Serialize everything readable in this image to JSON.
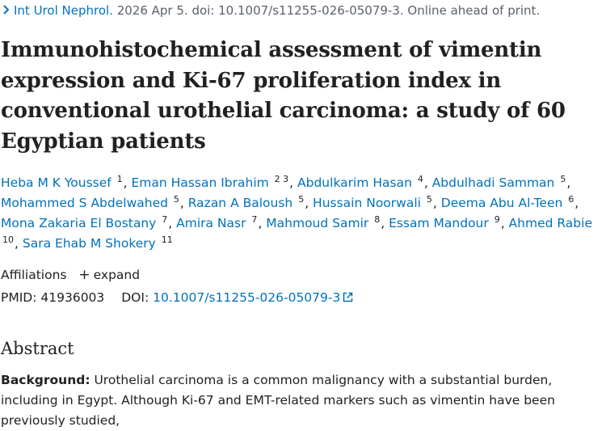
{
  "citation": {
    "journal": "Int Urol Nephrol.",
    "details": " 2026 Apr 5. doi: 10.1007/s11255-026-05079-3. Online ahead of print."
  },
  "title": "Immunohistochemical assessment of vimentin expression and Ki-67 proliferation index in conventional urothelial carcinoma: a study of 60 Egyptian patients",
  "authors": [
    {
      "name": "Heba M K Youssef",
      "aff": "1"
    },
    {
      "name": "Eman Hassan Ibrahim",
      "aff": "2 3"
    },
    {
      "name": "Abdulkarim Hasan",
      "aff": "4"
    },
    {
      "name": "Abdulhadi Samman",
      "aff": "5"
    },
    {
      "name": "Mohammed S Abdelwahed",
      "aff": "5"
    },
    {
      "name": "Razan A Baloush",
      "aff": "5"
    },
    {
      "name": "Hussain Noorwali",
      "aff": "5"
    },
    {
      "name": "Deema Abu Al-Teen",
      "aff": "6"
    },
    {
      "name": "Mona Zakaria El Bostany",
      "aff": "7"
    },
    {
      "name": "Amira Nasr",
      "aff": "7"
    },
    {
      "name": "Mahmoud Samir",
      "aff": "8"
    },
    {
      "name": "Essam Mandour",
      "aff": "9"
    },
    {
      "name": "Ahmed Rabie",
      "aff": "10"
    },
    {
      "name": "Sara Ehab M Shokery",
      "aff": "11"
    }
  ],
  "affiliations": {
    "label": "Affiliations",
    "expand_label": "expand"
  },
  "ids": {
    "pmid_label": "PMID:",
    "pmid": "41936003",
    "doi_label": "DOI:",
    "doi": "10.1007/s11255-026-05079-3"
  },
  "abstract": {
    "heading": "Abstract",
    "background_label": "Background:",
    "background_text": " Urothelial carcinoma is a common malignancy with a substantial burden, including in Egypt. Although Ki-67 and EMT-related markers such as vimentin have been previously studied,"
  },
  "icons": {
    "chevron": "chevron-right-icon",
    "plus": "plus-icon",
    "external": "external-link-icon"
  },
  "colors": {
    "link": "#0071bc",
    "text": "#212121",
    "muted": "#5b616b"
  }
}
